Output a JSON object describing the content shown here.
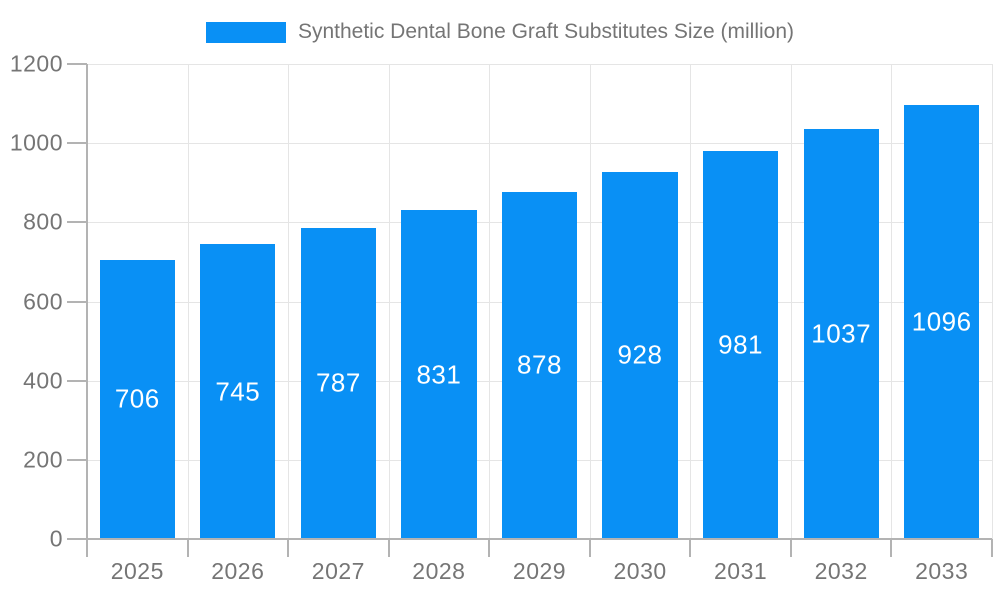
{
  "legend": {
    "label": "Synthetic Dental Bone Graft Substitutes Size (million)"
  },
  "chart_data": {
    "type": "bar",
    "title": "Synthetic Dental Bone Graft Substitutes Size (million)",
    "categories": [
      "2025",
      "2026",
      "2027",
      "2028",
      "2029",
      "2030",
      "2031",
      "2032",
      "2033"
    ],
    "values": [
      706,
      745,
      787,
      831,
      878,
      928,
      981,
      1037,
      1096
    ],
    "xlabel": "",
    "ylabel": "",
    "ylim": [
      0,
      1200
    ],
    "yticks": [
      0,
      200,
      400,
      600,
      800,
      1000,
      1200
    ],
    "grid": true,
    "legend_position": "top-center",
    "value_labels": "inside-center",
    "colors": {
      "bar": "#0990f5",
      "grid_line": "#e5e5e5",
      "axis_line": "#b3b3b3",
      "axis_text": "#757575",
      "bar_label_text": "#ffffff",
      "background": "#ffffff"
    }
  }
}
